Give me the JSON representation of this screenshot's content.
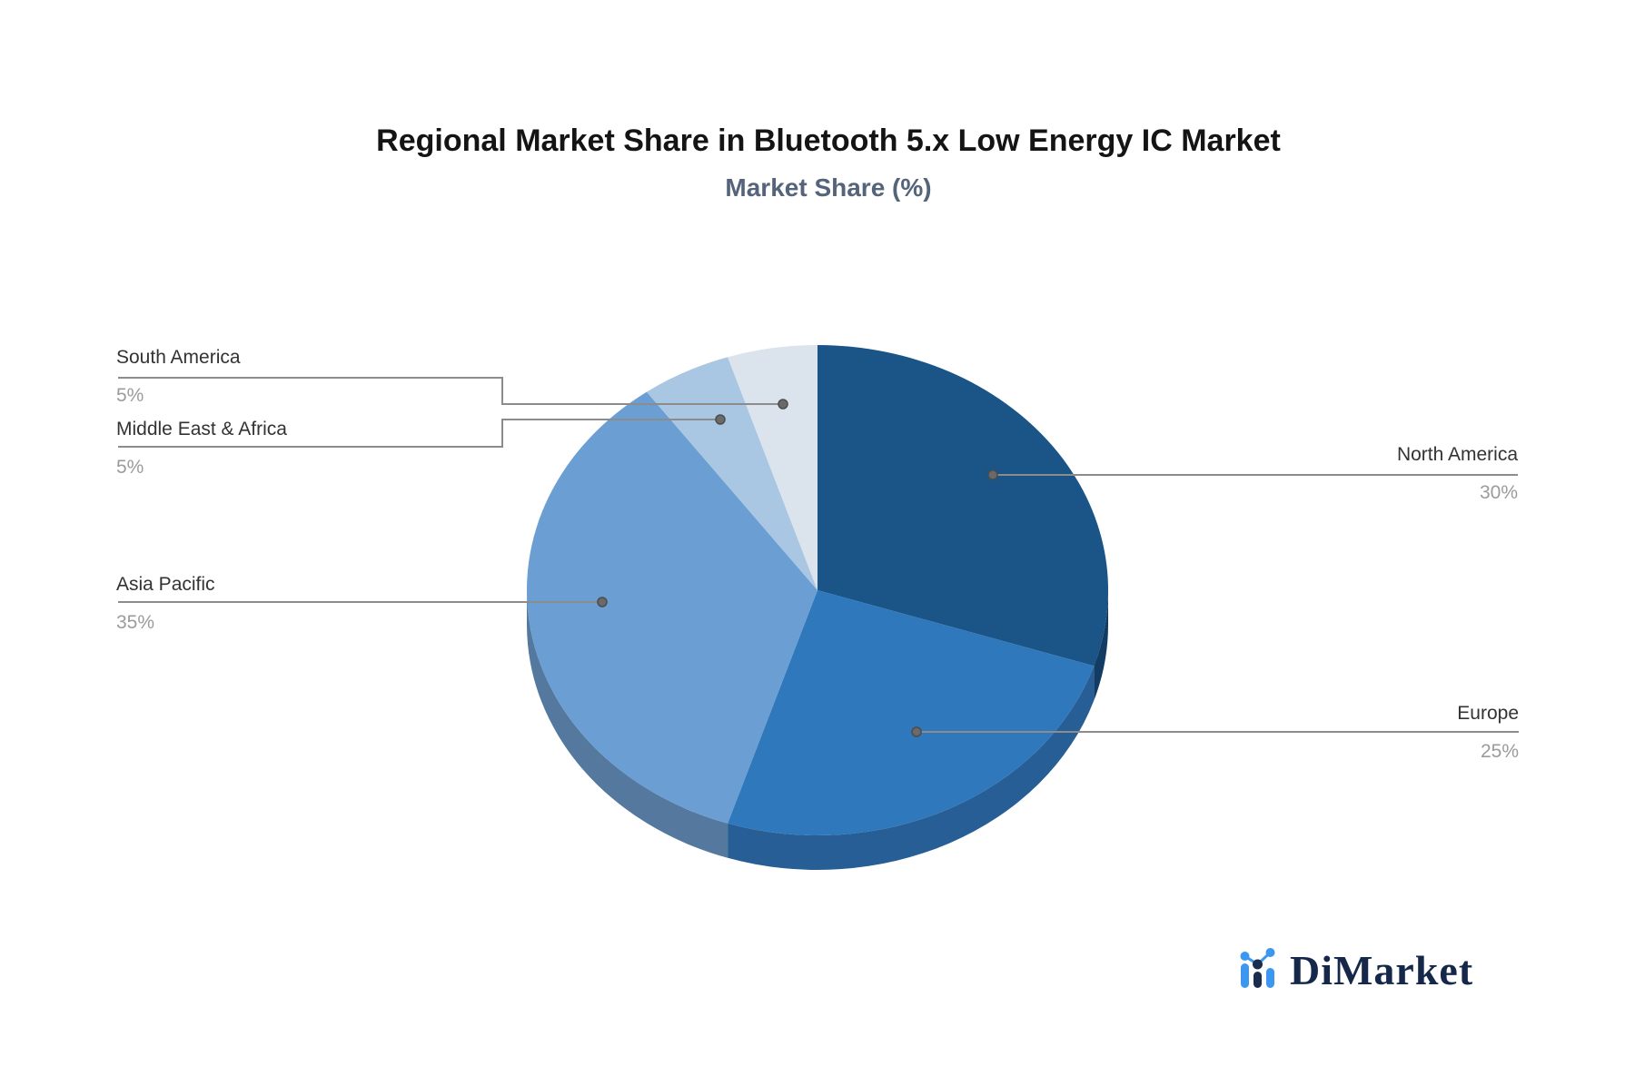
{
  "chart_data": {
    "type": "pie",
    "style": "3d",
    "title": "Regional Market Share in Bluetooth 5.x Low Energy IC Market",
    "subtitle": "Market Share (%)",
    "unit": "%",
    "labels": [
      "North America",
      "Europe",
      "Asia Pacific",
      "Middle East & Africa",
      "South America"
    ],
    "values": [
      30,
      25,
      35,
      5,
      5
    ],
    "display_values": [
      "30%",
      "25%",
      "35%",
      "5%",
      "5%"
    ],
    "colors": [
      "#1b5487",
      "#2e78bb",
      "#6b9ed3",
      "#a9c6e3",
      "#dbe3ed"
    ],
    "side_colors": [
      "#123c64",
      "#265e95",
      "#54789e",
      "#7f9dbd",
      "#b8c3d4"
    ],
    "start_angle": 0,
    "direction": "clockwise",
    "legend_position": "callouts"
  },
  "theme": {
    "background": "#ffffff",
    "title_color": "#141414",
    "subtitle_color": "#54647a",
    "label_color": "#333333",
    "value_color": "#9b9b9b",
    "leader_color": "#8c8c8c",
    "leader_dot_color": "#6a6a6a"
  },
  "brand": {
    "name": "DiMarket",
    "icon": "bar-line-chart-logo",
    "icon_bar_color": "#3b97f0",
    "icon_accent_color": "#1b2d4f",
    "text_color": "#16284a"
  }
}
